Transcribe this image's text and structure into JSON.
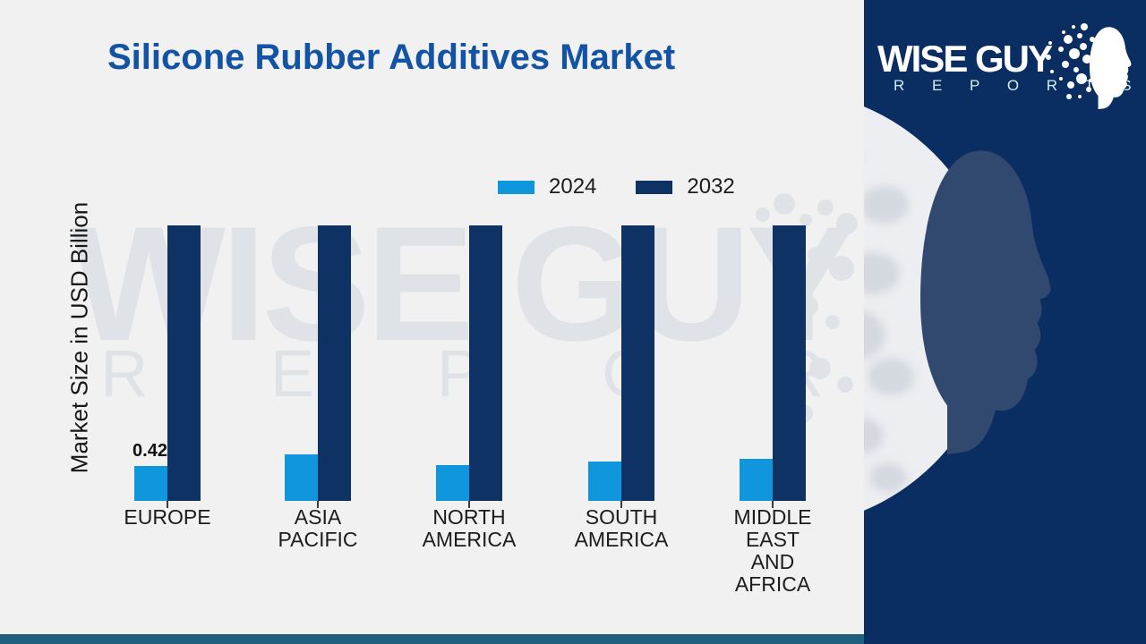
{
  "brand": {
    "name": "WISE GUY",
    "sub": "R E P O R T S"
  },
  "watermark": {
    "line1": "WISE GUY",
    "line2": "R E P O R T S"
  },
  "chart_data": {
    "type": "bar",
    "title": "Silicone Rubber Additives Market",
    "xlabel": "",
    "ylabel": "Market Size in USD Billion",
    "categories": [
      "EUROPE",
      "ASIA PACIFIC",
      "NORTH AMERICA",
      "SOUTH AMERICA",
      "MIDDLE EAST AND AFRICA"
    ],
    "series": [
      {
        "name": "2024",
        "color": "#1096dd",
        "values": [
          0.42,
          0.56,
          0.43,
          0.48,
          0.51
        ]
      },
      {
        "name": "2032",
        "color": "#0e3263",
        "values": [
          3.33,
          3.33,
          3.33,
          3.33,
          3.33
        ]
      }
    ],
    "annotations": [
      {
        "category": "EUROPE",
        "series": "2024",
        "text": "0.42"
      }
    ],
    "ylim": [
      0,
      3.33
    ],
    "grid": false,
    "legend_position": "top-right",
    "colors": {
      "title": "#1353a5",
      "bar_2024": "#1096dd",
      "bar_2032": "#0e3263",
      "panel": "#0a2e61",
      "footer": "#215f7e",
      "background": "#f1f1f2"
    }
  }
}
